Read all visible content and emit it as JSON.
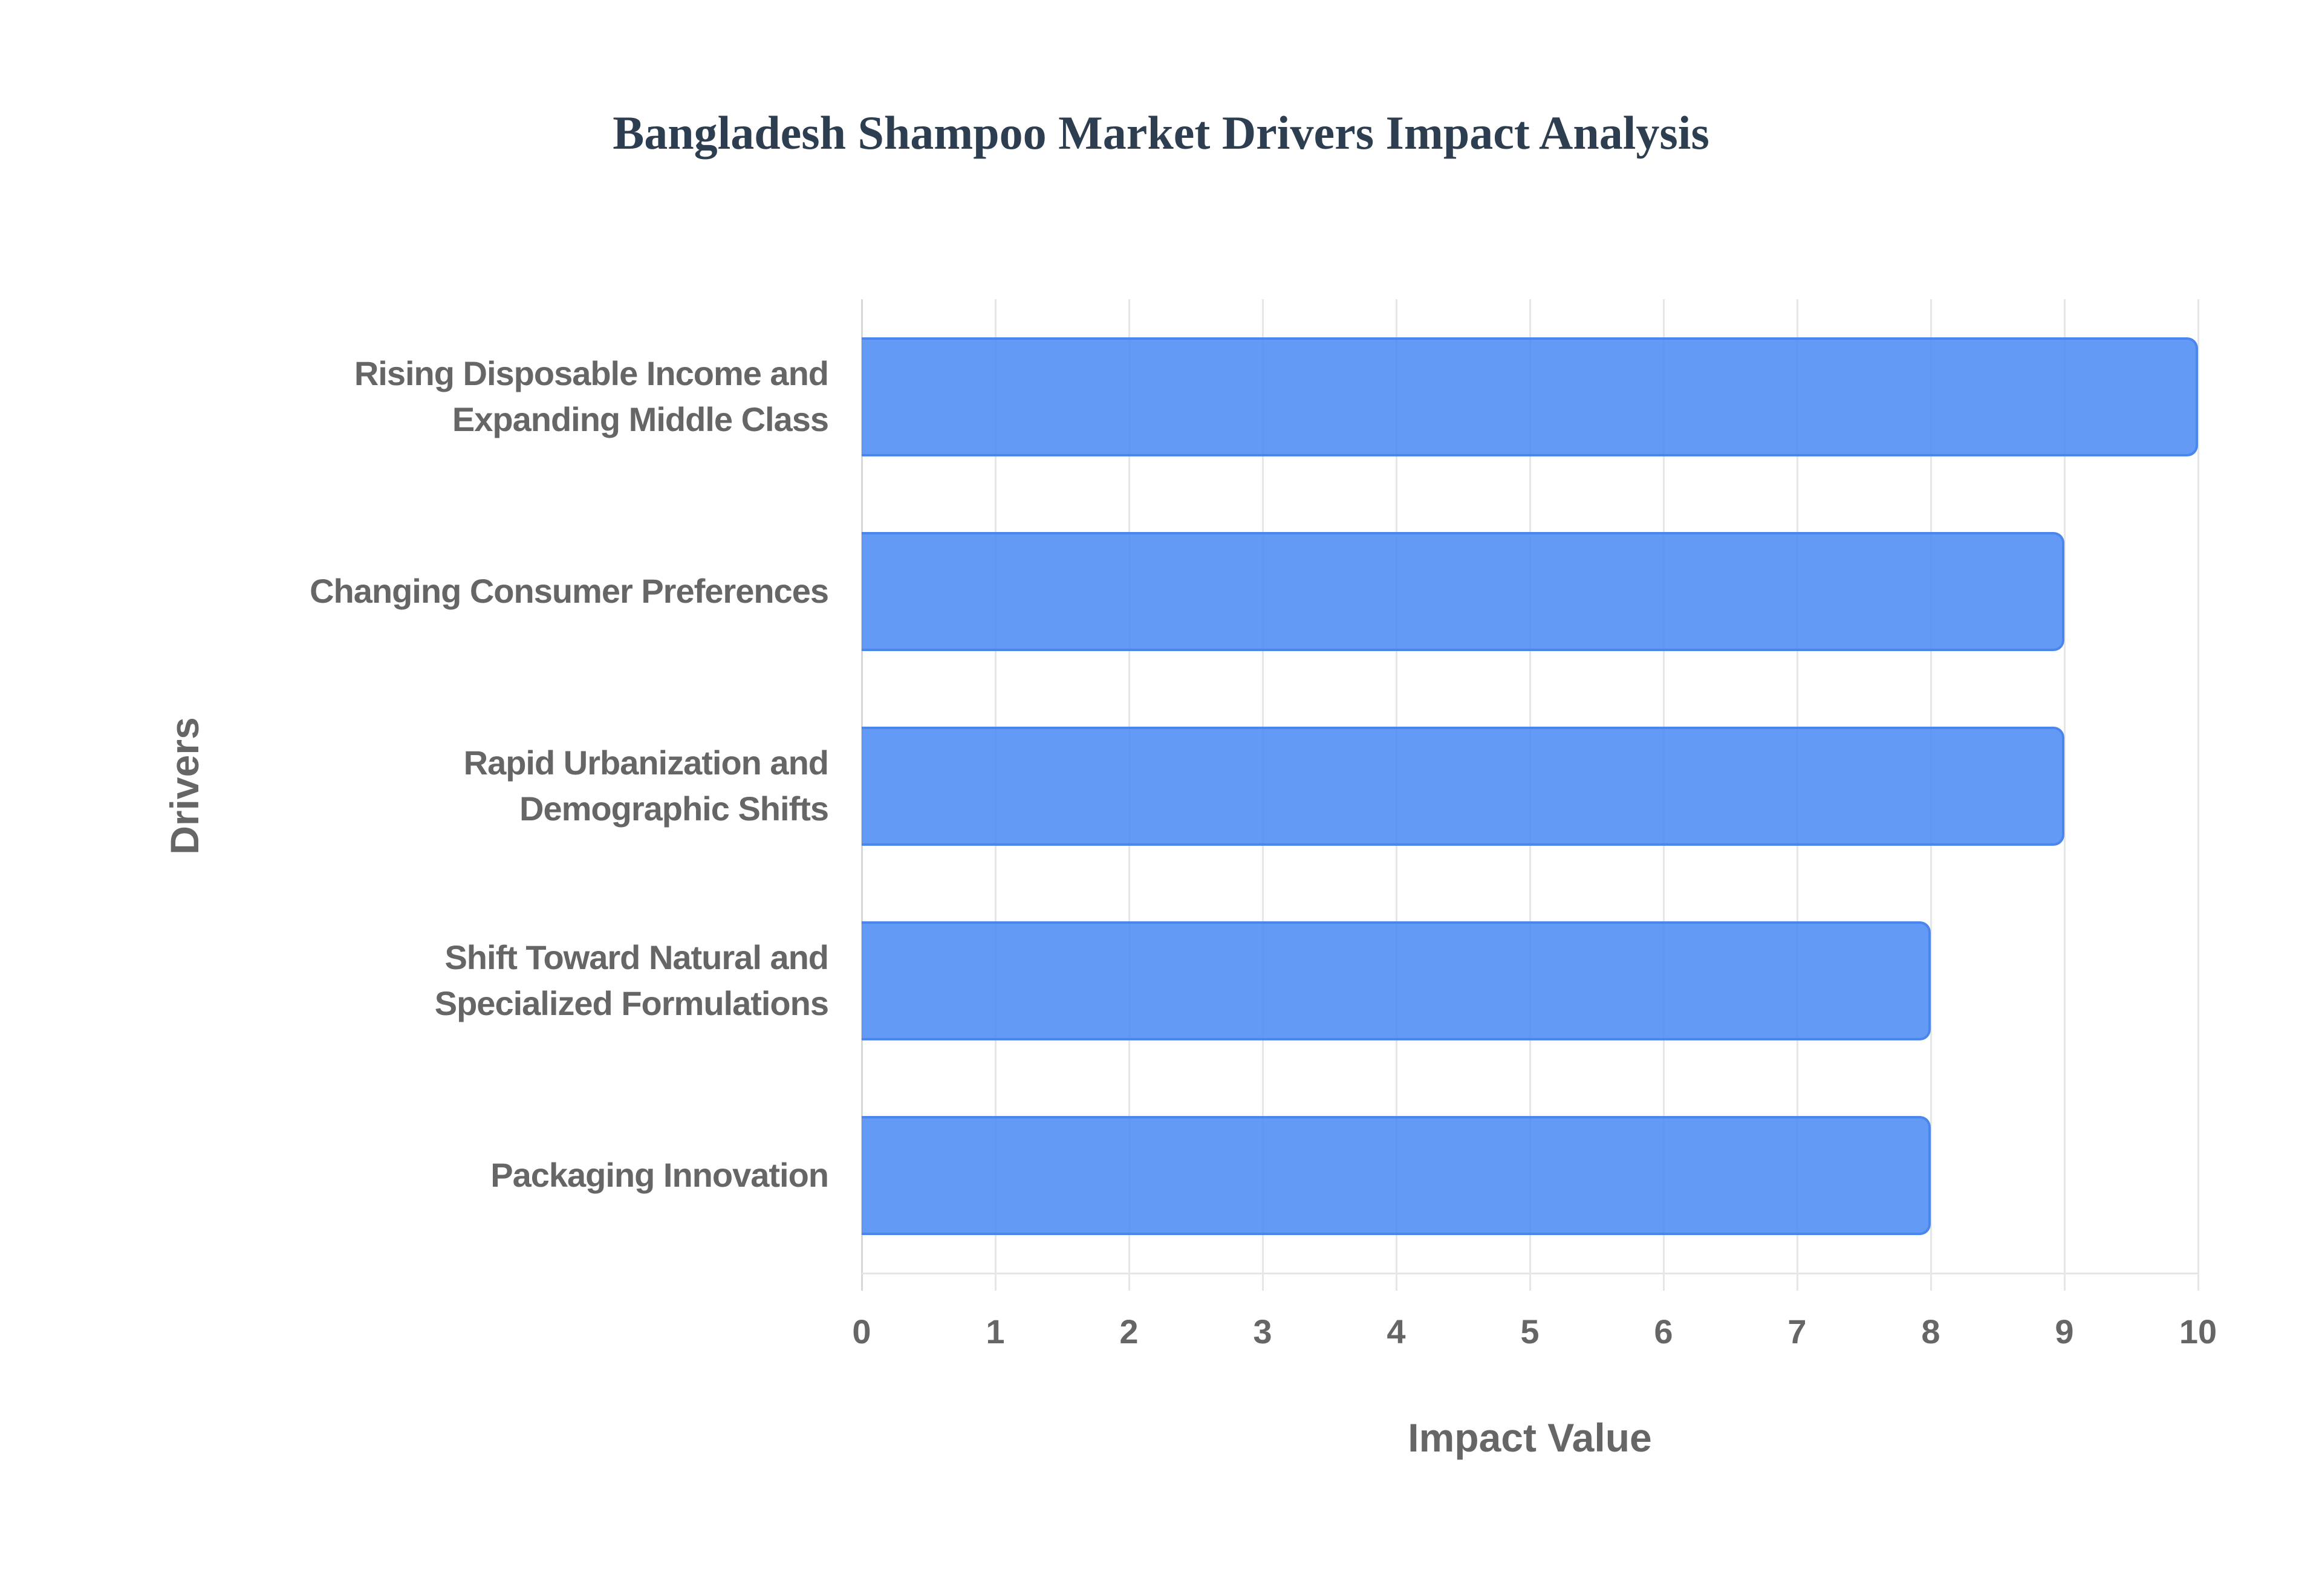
{
  "chart_data": {
    "type": "bar",
    "orientation": "horizontal",
    "title": "Bangladesh Shampoo Market Drivers Impact Analysis",
    "xlabel": "Impact Value",
    "ylabel": "Drivers",
    "categories": [
      "Rising Disposable Income and Expanding Middle Class",
      "Changing Consumer Preferences",
      "Rapid Urbanization and Demographic Shifts",
      "Shift Toward Natural and Specialized Formulations",
      "Packaging Innovation"
    ],
    "category_lines": [
      [
        "Rising Disposable Income and",
        "Expanding Middle Class"
      ],
      [
        "Changing Consumer Preferences"
      ],
      [
        "Rapid Urbanization and",
        "Demographic Shifts"
      ],
      [
        "Shift Toward Natural and",
        "Specialized Formulations"
      ],
      [
        "Packaging Innovation"
      ]
    ],
    "values": [
      10,
      9,
      9,
      8,
      8
    ],
    "xlim": [
      0,
      10
    ],
    "xticks": [
      "0",
      "1",
      "2",
      "3",
      "4",
      "5",
      "6",
      "7",
      "8",
      "9",
      "10"
    ],
    "grid": true,
    "legend": false,
    "bar_color": "#4d8cf5",
    "bar_border_color": "#4a86ee"
  }
}
